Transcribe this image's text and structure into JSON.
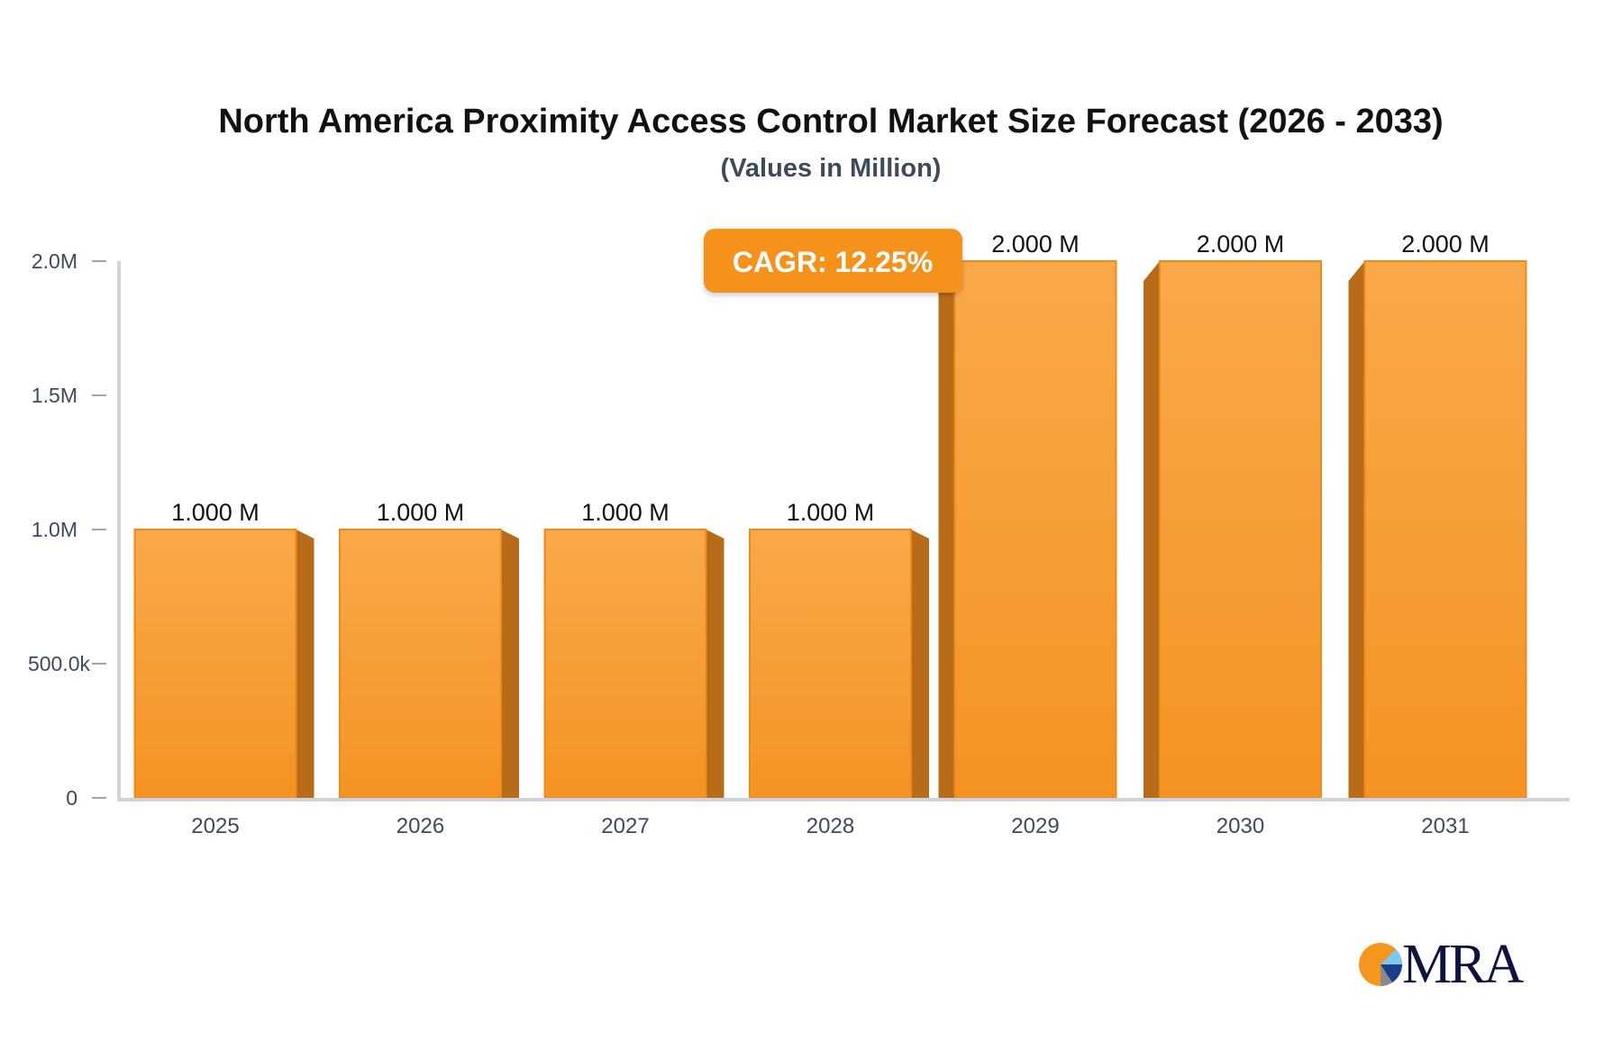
{
  "chart_data": {
    "type": "bar",
    "title": "North America Proximity Access Control Market Size Forecast (2026 - 2033)",
    "subtitle": "(Values in Million)",
    "categories": [
      "2025",
      "2026",
      "2027",
      "2028",
      "2029",
      "2030",
      "2031"
    ],
    "values": [
      1.0,
      1.0,
      1.0,
      1.0,
      2.0,
      2.0,
      2.0
    ],
    "data_labels": [
      "1.000 M",
      "1.000 M",
      "1.000 M",
      "1.000 M",
      "2.000 M",
      "2.000 M",
      "2.000 M"
    ],
    "y_ticks": [
      {
        "value": 0,
        "label": "0"
      },
      {
        "value": 0.5,
        "label": "500.0k"
      },
      {
        "value": 1.0,
        "label": "1.0M"
      },
      {
        "value": 1.5,
        "label": "1.5M"
      },
      {
        "value": 2.0,
        "label": "2.0M"
      }
    ],
    "ylim": [
      0,
      2.0
    ],
    "xlabel": "",
    "ylabel": "",
    "grid": false,
    "annotation": "CAGR: 12.25%",
    "colors": {
      "bar": "#f7a040",
      "bar_side": "#b86c1a",
      "annotation_bg": "#f5921e",
      "axis": "#d0d3da"
    }
  },
  "logo": {
    "text": "MRA"
  }
}
